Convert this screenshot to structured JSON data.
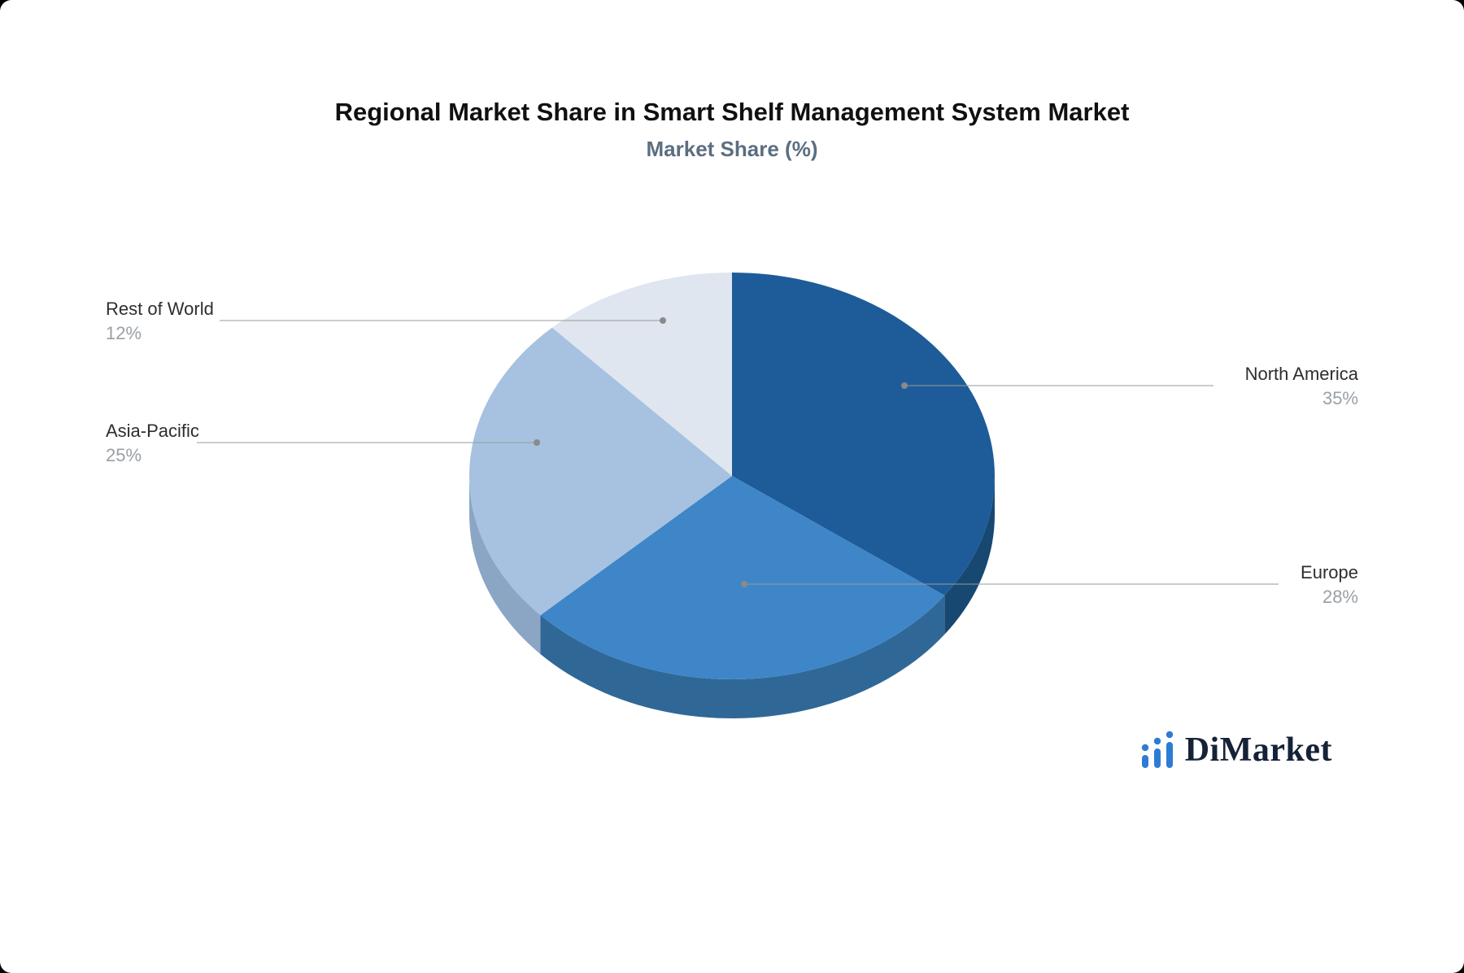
{
  "page": {
    "title": "Regional Market Share in Smart Shelf Management System Market",
    "subtitle": "Market Share (%)"
  },
  "brand": {
    "name": "DiMarket",
    "logo_icon": "bar-chart-icon",
    "color": "#152238",
    "icon_color": "#2D7CD4"
  },
  "chart_data": {
    "type": "pie",
    "style": "3d",
    "title": "Regional Market Share in Smart Shelf Management System Market",
    "subtitle": "Market Share (%)",
    "unit": "%",
    "start_angle_deg": 0,
    "direction": "clockwise",
    "labels": [
      "North America",
      "Europe",
      "Asia-Pacific",
      "Rest of World"
    ],
    "values": [
      35,
      28,
      25,
      12
    ],
    "value_labels": [
      "35%",
      "28%",
      "25%",
      "12%"
    ],
    "colors": [
      "#1E5C99",
      "#3E86C8",
      "#A6C2E0",
      "#DFE6EF"
    ],
    "side_colors": [
      "#174871",
      "#2F6897",
      "#8BA6C4",
      "#BCC7D4"
    ],
    "leader_line_color": "#9a9a9a",
    "label_text_color": "#2e2e2e",
    "value_text_color": "#9aa0a6",
    "legend_position": "none",
    "grid": false
  }
}
